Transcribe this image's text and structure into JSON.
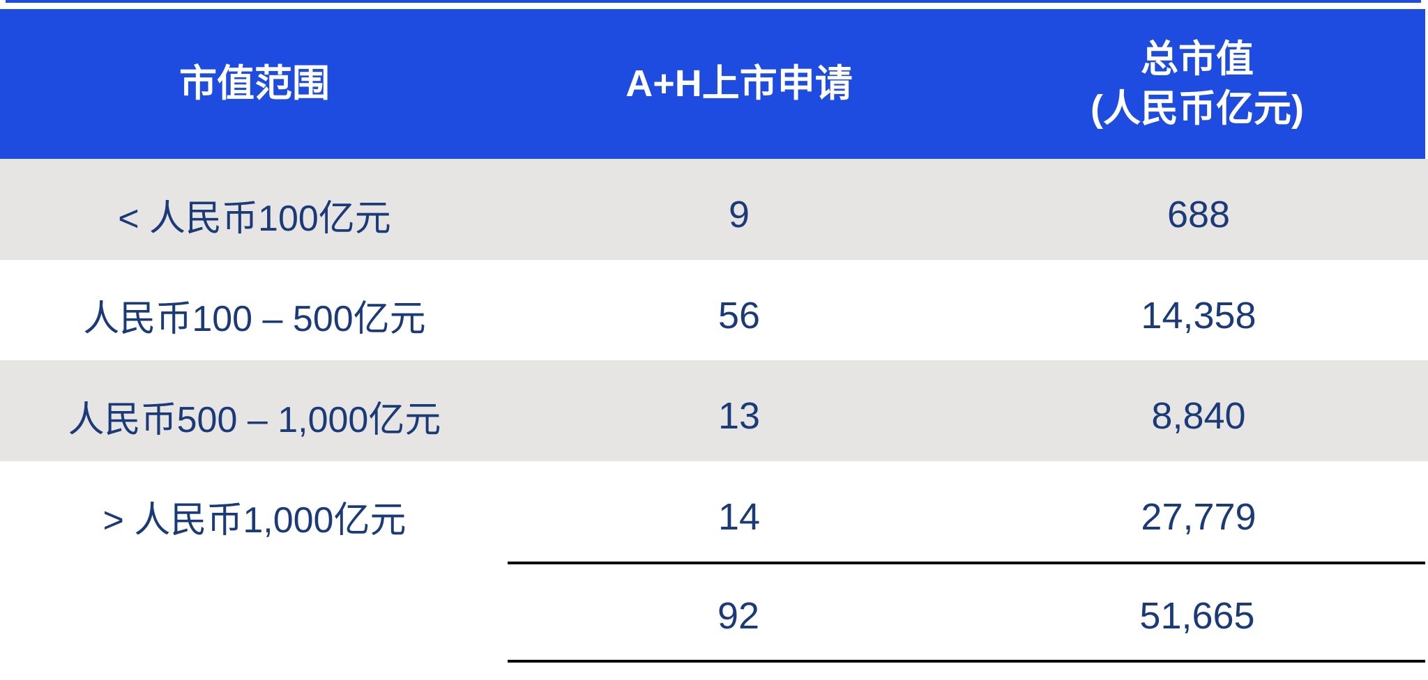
{
  "colors": {
    "header_bg": "#1e4ce1",
    "header_text": "#ffffff",
    "row_bg": "#ffffff",
    "row_alt_bg": "#e6e5e3",
    "body_text": "#1a3a78",
    "rule": "#000000"
  },
  "header": {
    "col1": "市值范围",
    "col2": "A+H上市申请",
    "col3_line1": "总市值",
    "col3_line2": "(人民币亿元)"
  },
  "rows": [
    {
      "range": "< 人民币100亿元",
      "applications": "9",
      "total_market_cap": "688"
    },
    {
      "range": "人民币100 – 500亿元",
      "applications": "56",
      "total_market_cap": "14,358"
    },
    {
      "range": "人民币500 – 1,000亿元",
      "applications": "13",
      "total_market_cap": "8,840"
    },
    {
      "range": "> 人民币1,000亿元",
      "applications": "14",
      "total_market_cap": "27,779"
    }
  ],
  "total": {
    "applications": "92",
    "total_market_cap": "51,665"
  },
  "chart_data": {
    "type": "table",
    "columns": [
      "市值范围",
      "A+H上市申请",
      "总市值 (人民币亿元)"
    ],
    "rows": [
      [
        "< 人民币100亿元",
        9,
        688
      ],
      [
        "人民币100 – 500亿元",
        56,
        14358
      ],
      [
        "人民币500 – 1,000亿元",
        13,
        8840
      ],
      [
        "> 人民币1,000亿元",
        14,
        27779
      ]
    ],
    "totals_row": [
      null,
      92,
      51665
    ],
    "layout": {
      "header_bg": "#1e4ce1",
      "alt_row_bg": "#e6e5e3",
      "total_row_rules": "black lines above and below, spanning columns 2-3 only"
    }
  }
}
